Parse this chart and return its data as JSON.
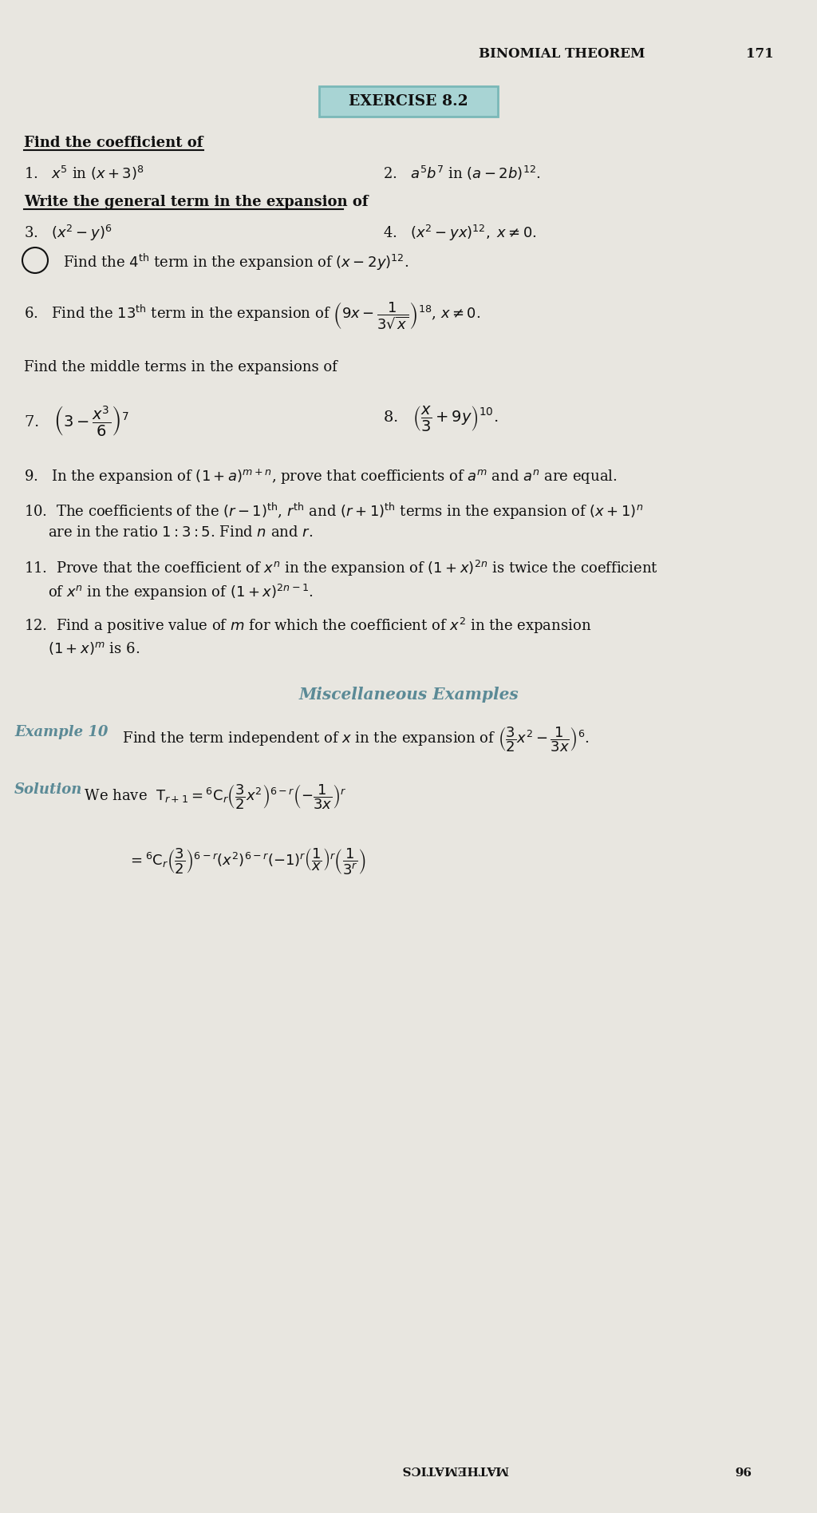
{
  "page_bg": "#e8e6e0",
  "header_text": "BINOMIAL THEOREM",
  "header_page": "171",
  "exercise_box_text": "EXERCISE 8.2",
  "exercise_box_bg": "#a8d4d4",
  "exercise_box_border": "#7ab8b8",
  "text_color": "#111111",
  "italic_color": "#5b8a96",
  "footer_text": "MATHEMATICS",
  "footer_page": "96"
}
